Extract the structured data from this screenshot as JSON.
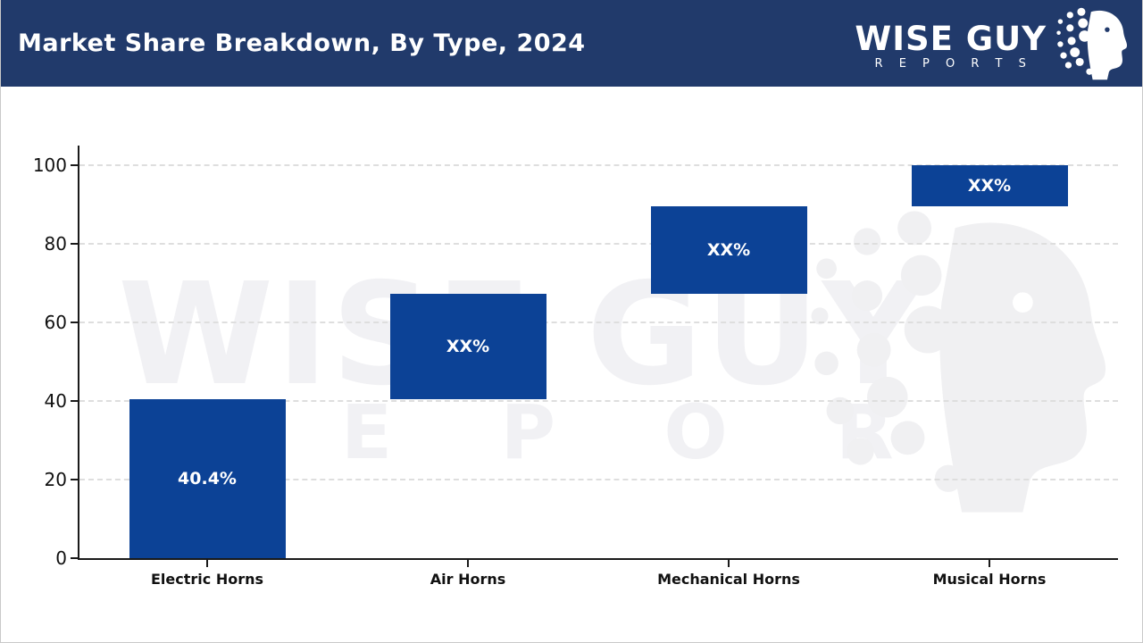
{
  "header": {
    "title": "Market Share Breakdown, By Type, 2024",
    "bg_color": "#213a6b",
    "logo": {
      "name": "WISE GUY",
      "subtitle": "R E P O R T S"
    }
  },
  "watermark": {
    "line1": "WISE GUY",
    "line2": "R E P O R T S"
  },
  "chart_data": {
    "type": "bar",
    "subtype": "waterfall",
    "title": "Market Share Breakdown, By Type, 2024",
    "categories": [
      "Electric Horns",
      "Air Horns",
      "Mechanical Horns",
      "Musical Horns"
    ],
    "series": [
      {
        "name": "Market Share",
        "segments": [
          {
            "start": 0,
            "end": 40.4,
            "label": "40.4%"
          },
          {
            "start": 40.4,
            "end": 67.3,
            "label": "XX%"
          },
          {
            "start": 67.3,
            "end": 89.5,
            "label": "XX%"
          },
          {
            "start": 89.5,
            "end": 100,
            "label": "XX%"
          }
        ],
        "values": [
          40.4,
          26.9,
          22.2,
          10.5
        ]
      }
    ],
    "bar_color": "#0c4296",
    "label_color": "#ffffff",
    "xlabel": "",
    "ylabel": "",
    "ylim": [
      0,
      105
    ],
    "yticks": [
      0,
      20,
      40,
      60,
      80,
      100
    ],
    "grid": "horizontal dashed",
    "legend": "none"
  }
}
